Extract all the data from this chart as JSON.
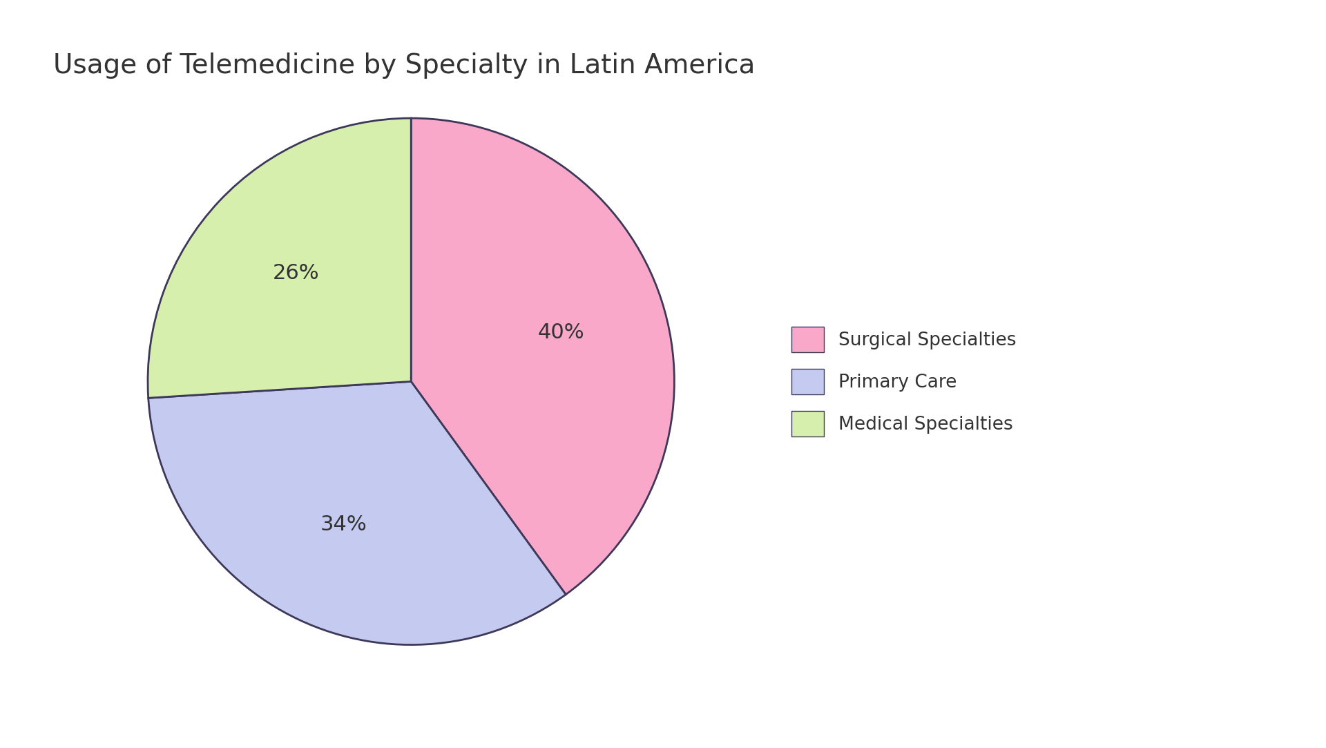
{
  "title": "Usage of Telemedicine by Specialty in Latin America",
  "labels": [
    "Surgical Specialties",
    "Primary Care",
    "Medical Specialties"
  ],
  "values": [
    40,
    34,
    26
  ],
  "colors": [
    "#F9A8C9",
    "#C5CAF0",
    "#D6EFAD"
  ],
  "edge_color": "#3D3859",
  "edge_width": 2.0,
  "pct_labels": [
    "40%",
    "34%",
    "26%"
  ],
  "title_fontsize": 28,
  "pct_fontsize": 22,
  "legend_fontsize": 19,
  "startangle": 90,
  "background_color": "#ffffff",
  "text_color": "#333333"
}
